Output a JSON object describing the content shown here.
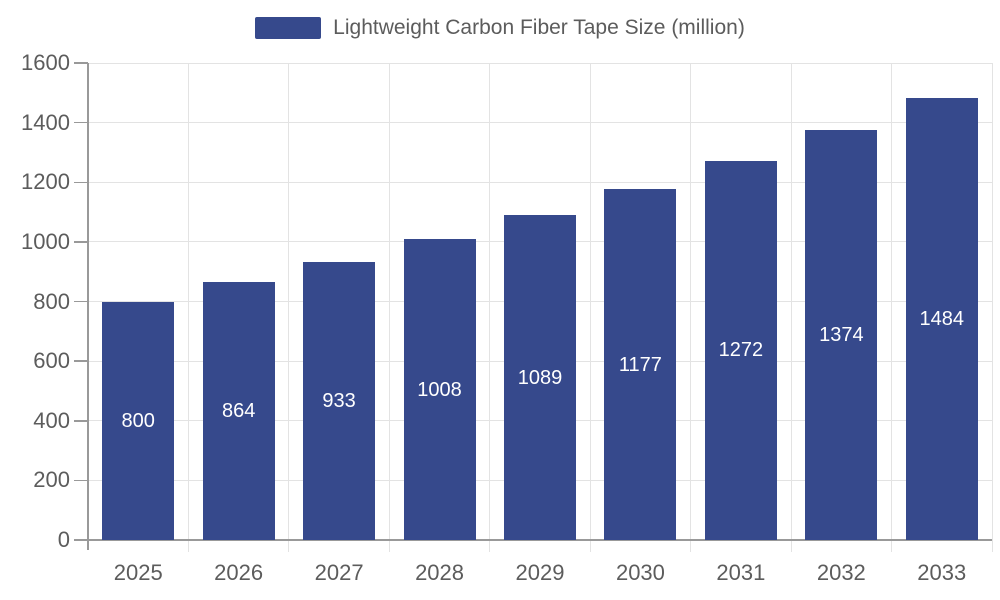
{
  "chart_data": {
    "type": "bar",
    "title": "Lightweight Carbon Fiber Tape Size (million)",
    "categories": [
      "2025",
      "2026",
      "2027",
      "2028",
      "2029",
      "2030",
      "2031",
      "2032",
      "2033"
    ],
    "series": [
      {
        "name": "Lightweight Carbon Fiber Tape Size (million)",
        "values": [
          800,
          864,
          933,
          1008,
          1089,
          1177,
          1272,
          1374,
          1484
        ]
      }
    ],
    "xlabel": "",
    "ylabel": "",
    "ylim": [
      0,
      1600
    ],
    "yticks": [
      0,
      200,
      400,
      600,
      800,
      1000,
      1200,
      1400,
      1600
    ],
    "grid": true,
    "legend_position": "top",
    "value_labels": "inside-center",
    "colors": {
      "bar": "#36498c",
      "value_label": "#ffffff",
      "axis": "#999999",
      "gridline": "#e3e3e3",
      "tick_label": "#5c5c5c"
    }
  }
}
